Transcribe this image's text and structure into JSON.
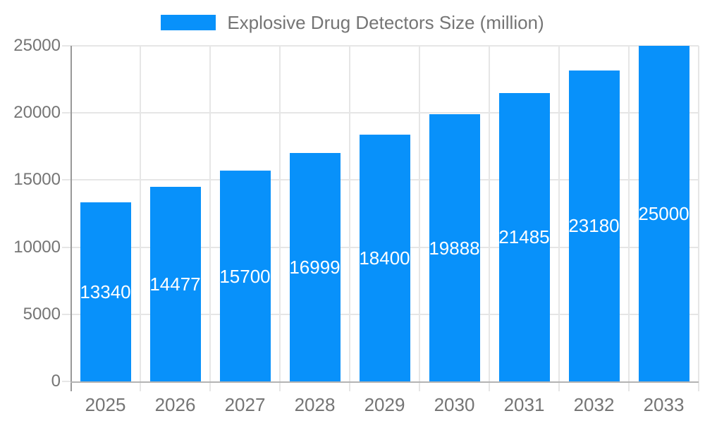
{
  "chart_data": {
    "type": "bar",
    "title": "",
    "legend": {
      "label": "Explosive Drug Detectors Size (million)",
      "position": "top"
    },
    "categories": [
      "2025",
      "2026",
      "2027",
      "2028",
      "2029",
      "2030",
      "2031",
      "2032",
      "2033"
    ],
    "series": [
      {
        "name": "Explosive Drug Detectors Size (million)",
        "values": [
          13340,
          14477,
          15700,
          16999,
          18400,
          19888,
          21485,
          23180,
          25000
        ]
      }
    ],
    "value_labels": [
      "13340",
      "14477",
      "15700",
      "16999",
      "18400",
      "19888",
      "21485",
      "23180",
      "25000"
    ],
    "xlabel": "",
    "ylabel": "",
    "ylim": [
      0,
      25000
    ],
    "yticks": [
      0,
      5000,
      10000,
      15000,
      20000,
      25000
    ],
    "ytick_labels": [
      "0",
      "5000",
      "10000",
      "15000",
      "20000",
      "25000"
    ],
    "grid": true,
    "colors": {
      "bar": "#0891fa",
      "grid": "#e6e6e6",
      "yaxis_line": "#999999",
      "baseline": "#b3b3b3",
      "tick_label": "#757575",
      "value_label": "#ffffff",
      "legend_text": "#757575",
      "background": "#ffffff"
    }
  }
}
